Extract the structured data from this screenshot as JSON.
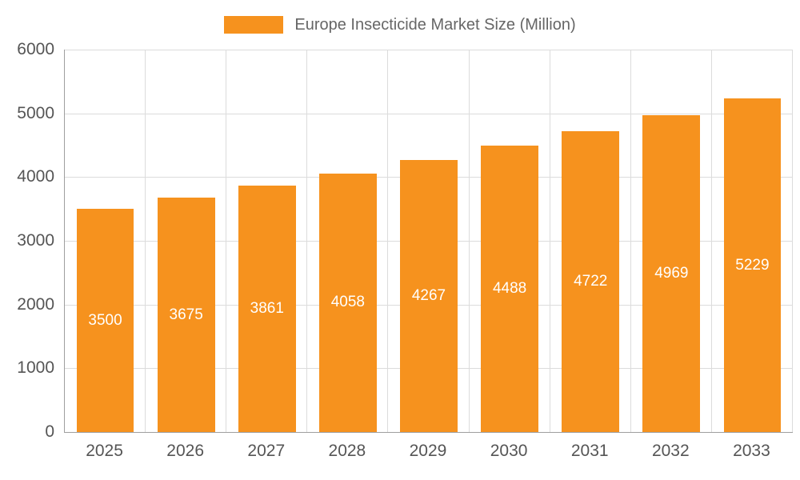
{
  "chart_data": {
    "type": "bar",
    "title": "Europe Insecticide Market Size (Million)",
    "categories": [
      "2025",
      "2026",
      "2027",
      "2028",
      "2029",
      "2030",
      "2031",
      "2032",
      "2033"
    ],
    "values": [
      3500,
      3675,
      3861,
      4058,
      4267,
      4488,
      4722,
      4969,
      5229
    ],
    "xlabel": "",
    "ylabel": "",
    "ylim": [
      0,
      6000
    ],
    "yticks": [
      0,
      1000,
      2000,
      3000,
      4000,
      5000,
      6000
    ],
    "grid": "on",
    "legend_position": "top-center",
    "bar_color": "#F6921E",
    "value_label_color": "#ffffff",
    "axis_color": "#9e9e9e",
    "gridline_color": "#dcdcdc",
    "tick_label_color": "#555555",
    "title_color": "#666666"
  }
}
